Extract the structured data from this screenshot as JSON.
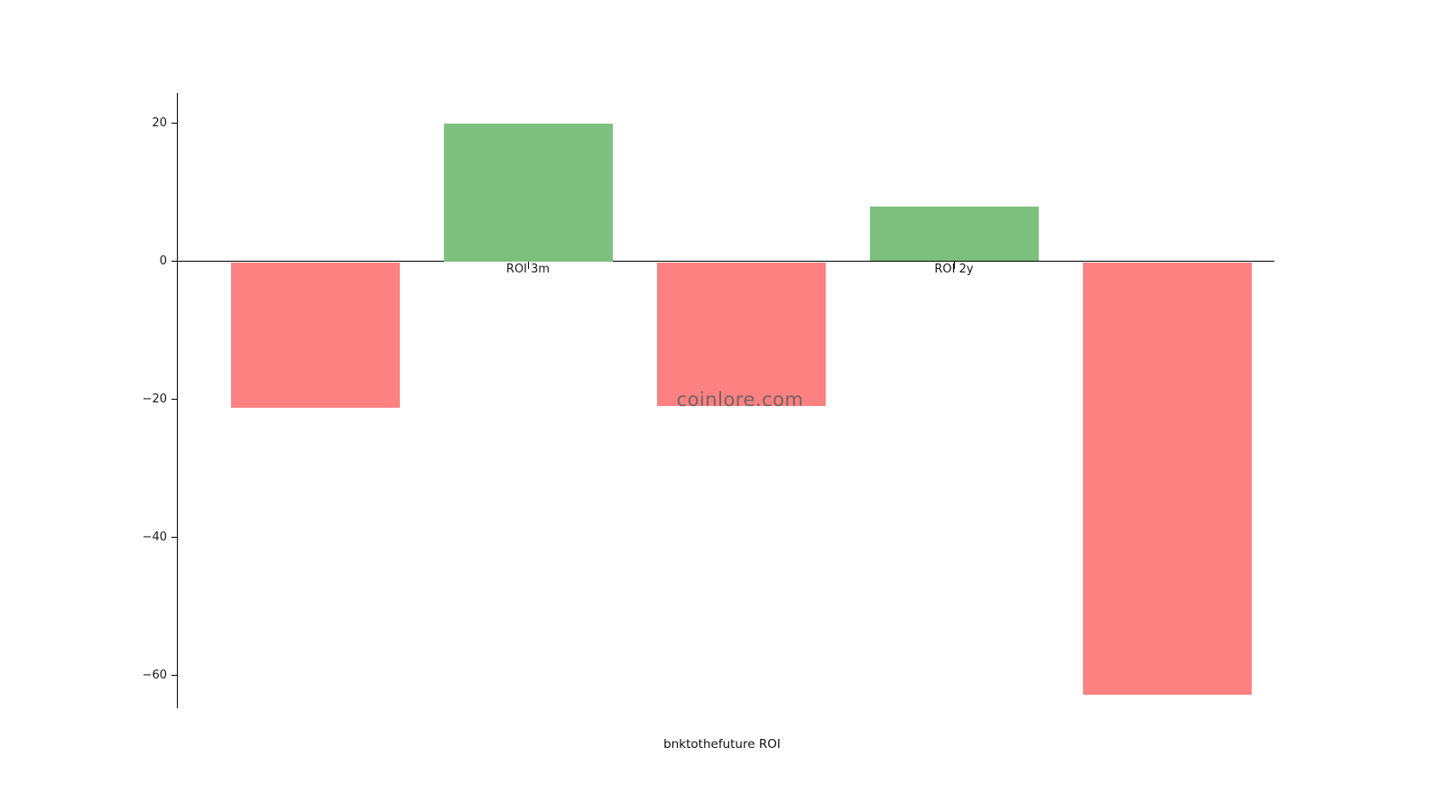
{
  "chart_data": {
    "type": "bar",
    "title": "bnktothefuture ROI",
    "watermark": "coinlore.com",
    "categories": [
      "",
      "ROI 3m",
      "",
      "ROI 2y",
      ""
    ],
    "values": [
      -21.1,
      20,
      -20.9,
      7.9,
      -62.7
    ],
    "positive_color": "#7dbf7c",
    "negative_color": "#fd8181",
    "bar_colors": [
      "#fd8181",
      "#7dbf7c",
      "#fd8181",
      "#7dbf7c",
      "#fd8181"
    ],
    "y_ticks": [
      {
        "value": 20,
        "label": "20"
      },
      {
        "value": 0,
        "label": "0"
      },
      {
        "value": -20,
        "label": "−20"
      },
      {
        "value": -40,
        "label": "−40"
      },
      {
        "value": -60,
        "label": "−60"
      }
    ],
    "ylim": [
      -64.8,
      24.4
    ],
    "xlabel": "",
    "ylabel": "",
    "grid": false,
    "legend": false,
    "axis_color": "#000000",
    "background_color": "#ffffff"
  }
}
